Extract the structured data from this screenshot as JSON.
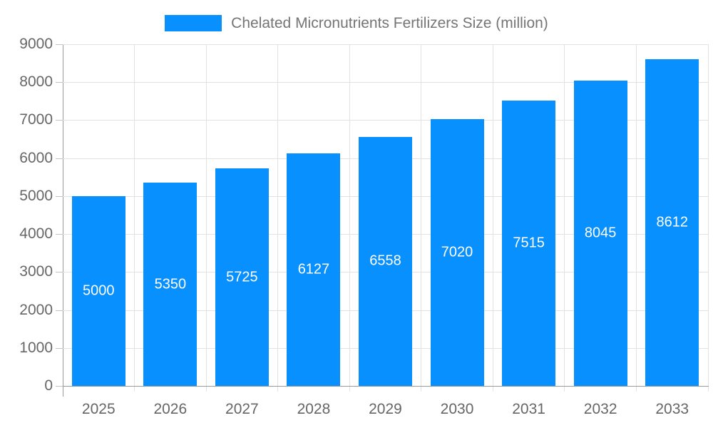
{
  "chart_data": {
    "type": "bar",
    "title": "Chelated Micronutrients Fertilizers Size (million)",
    "categories": [
      "2025",
      "2026",
      "2027",
      "2028",
      "2029",
      "2030",
      "2031",
      "2032",
      "2033"
    ],
    "series": [
      {
        "name": "Chelated Micronutrients Fertilizers Size (million)",
        "values": [
          5000,
          5350,
          5725,
          6127,
          6558,
          7020,
          7515,
          8045,
          8612
        ]
      }
    ],
    "value_labels": [
      "5000",
      "5350",
      "5725",
      "6127",
      "6558",
      "7020",
      "7515",
      "8045",
      "8612"
    ],
    "xlabel": "",
    "ylabel": "",
    "ylim": [
      0,
      9000
    ],
    "ytick_step": 1000,
    "ytick_labels": [
      "0",
      "1000",
      "2000",
      "3000",
      "4000",
      "5000",
      "6000",
      "7000",
      "8000",
      "9000"
    ],
    "grid": true,
    "legend_position": "top"
  },
  "colors": {
    "bar": "#0990ff",
    "bar_label": "#ffffff",
    "legend_text": "#757575",
    "axis_text": "#666666",
    "gridline": "#e2e2e2",
    "axis_line": "#9a9a9a",
    "tick": "#c4c4c4",
    "background": "#ffffff"
  }
}
